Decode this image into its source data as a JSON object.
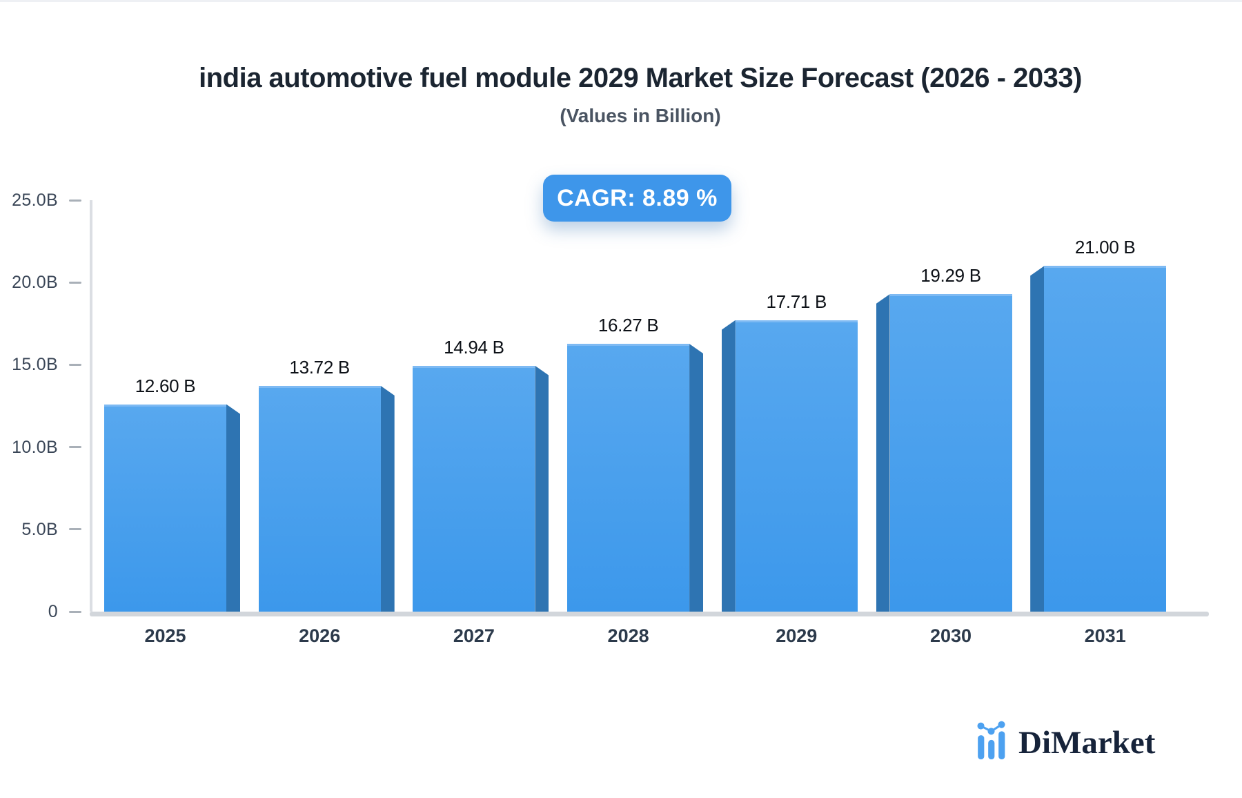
{
  "chart_data": {
    "type": "bar",
    "title": "india automotive fuel module 2029 Market Size Forecast (2026 - 2033)",
    "subtitle": "(Values in Billion)",
    "cagr_label": "CAGR: 8.89 %",
    "unit": "Billion",
    "categories": [
      "2025",
      "2026",
      "2027",
      "2028",
      "2029",
      "2030",
      "2031"
    ],
    "values": [
      12.6,
      13.72,
      14.94,
      16.27,
      17.71,
      19.29,
      21.0
    ],
    "bar_labels": [
      "12.60 B",
      "13.72 B",
      "14.94 B",
      "16.27 B",
      "17.71 B",
      "19.29 B",
      "21.00 B"
    ],
    "ylim": [
      0,
      25
    ],
    "yticks": [
      {
        "value": 25,
        "label": "25.0B"
      },
      {
        "value": 20,
        "label": "20.0B"
      },
      {
        "value": 15,
        "label": "15.0B"
      },
      {
        "value": 10,
        "label": "10.0B"
      },
      {
        "value": 5,
        "label": "5.0B"
      },
      {
        "value": 0,
        "label": "0"
      }
    ],
    "grid": false,
    "legend": false,
    "bar_3d_side": [
      "right",
      "right",
      "right",
      "right",
      "left",
      "left",
      "left"
    ],
    "colors": {
      "bar_face_top": "#58A8EF",
      "bar_face_bottom": "#3C98EB",
      "bar_bevel": "#7EBAF3",
      "bar_side_3d": "#2E74B2",
      "axis_line": "#DBDEE3",
      "baseline": "#D2D6DB",
      "tick_text": "#3A4657",
      "value_text": "#0D1117",
      "badge_bg": "#3E96EA",
      "badge_text": "#FFFFFF"
    }
  },
  "logo": {
    "text": "DiMarket",
    "icon": "bar-chart-dots-icon",
    "text_color": "#16233A",
    "accent": "#4DA1F0"
  }
}
